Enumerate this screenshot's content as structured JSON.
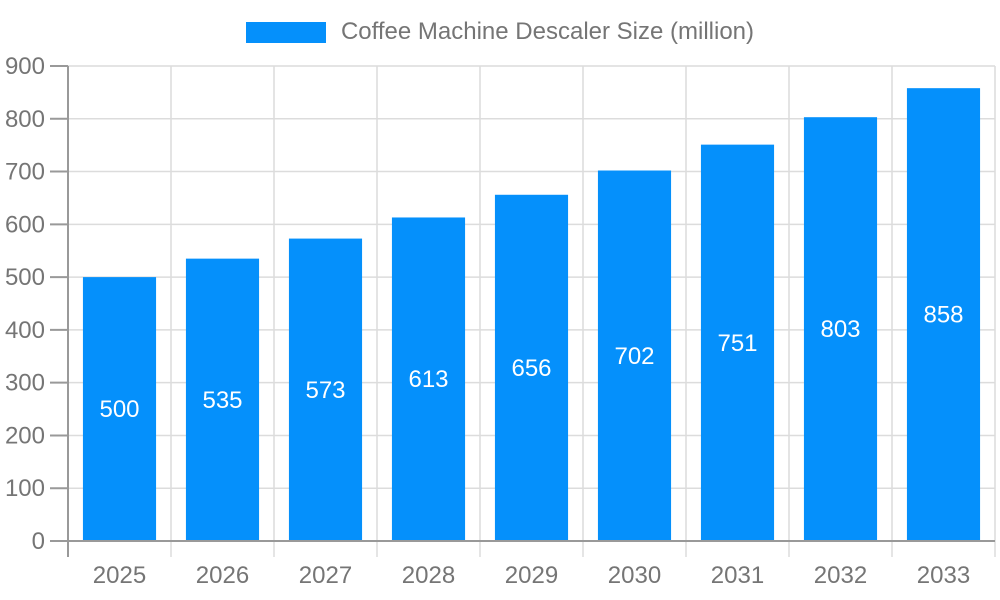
{
  "legend": {
    "label": "Coffee Machine Descaler Size (million)",
    "swatch_color": "#0590fb"
  },
  "chart_data": {
    "type": "bar",
    "title": "Coffee Machine Descaler Size (million)",
    "categories": [
      "2025",
      "2026",
      "2027",
      "2028",
      "2029",
      "2030",
      "2031",
      "2032",
      "2033"
    ],
    "values": [
      500,
      535,
      573,
      613,
      656,
      702,
      751,
      803,
      858
    ],
    "xlabel": "",
    "ylabel": "",
    "ylim": [
      0,
      900
    ],
    "ytick_step": 100,
    "yticks": [
      0,
      100,
      200,
      300,
      400,
      500,
      600,
      700,
      800,
      900
    ],
    "grid": true,
    "legend_position": "top-center",
    "bar_color": "#0590fb",
    "bar_label_color": "#ffffff",
    "axis_color": "#999999",
    "grid_color": "#dcdcdc",
    "tick_label_color": "#757575"
  }
}
